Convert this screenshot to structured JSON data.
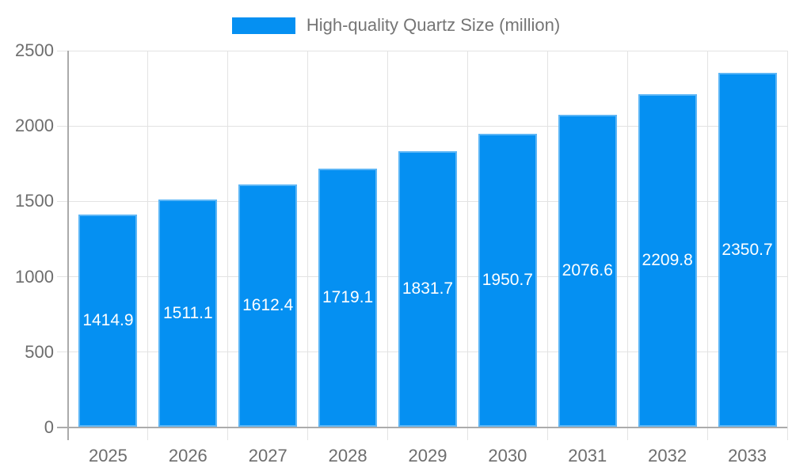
{
  "legend": {
    "label": "High-quality Quartz Size (million)"
  },
  "chart_data": {
    "type": "bar",
    "title": "High-quality Quartz Size (million)",
    "categories": [
      "2025",
      "2026",
      "2027",
      "2028",
      "2029",
      "2030",
      "2031",
      "2032",
      "2033"
    ],
    "values": [
      1414.9,
      1511.1,
      1612.4,
      1719.1,
      1831.7,
      1950.7,
      2076.6,
      2209.8,
      2350.7
    ],
    "xlabel": "",
    "ylabel": "",
    "ylim": [
      0,
      2500
    ],
    "yticks": [
      0,
      500,
      1000,
      1500,
      2000,
      2500
    ],
    "grid": true,
    "legend_position": "top",
    "value_labels": "inside-center"
  },
  "colors": {
    "bar": "#0590f2",
    "legend_text": "#757575",
    "axis_text": "#6d6d6d",
    "gridline": "#e3e3e3",
    "axis_line": "#ababab",
    "value_label": "#ffffff",
    "background": "#ffffff"
  }
}
